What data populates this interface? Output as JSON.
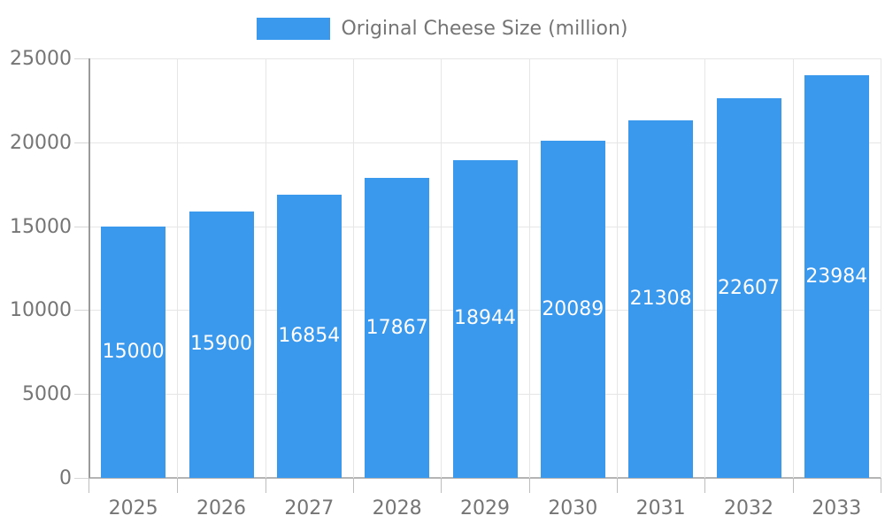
{
  "legend": {
    "label": "Original Cheese Size (million)",
    "swatch_color": "#3A98ED"
  },
  "chart_data": {
    "type": "bar",
    "title": "",
    "legend_label": "Original Cheese Size (million)",
    "legend_position": "top",
    "categories": [
      "2025",
      "2026",
      "2027",
      "2028",
      "2029",
      "2030",
      "2031",
      "2032",
      "2033"
    ],
    "values": [
      15000,
      15900,
      16854,
      17867,
      18944,
      20089,
      21308,
      22607,
      23984
    ],
    "xlabel": "",
    "ylabel": "",
    "ylim": [
      0,
      25000
    ],
    "yticks": [
      0,
      5000,
      10000,
      15000,
      20000,
      25000
    ],
    "grid": "horizontal and vertical gridlines on",
    "value_labels": "inside bars, centered, white"
  },
  "colors": {
    "bar": "#3A98ED",
    "grid": "#e6e6e6",
    "axis_line": "#9a9a9a",
    "baseline": "#b5b5b5",
    "tick": "#bdbdbd",
    "label_text": "#757575",
    "value_text": "#ffffff",
    "background": "#ffffff"
  }
}
